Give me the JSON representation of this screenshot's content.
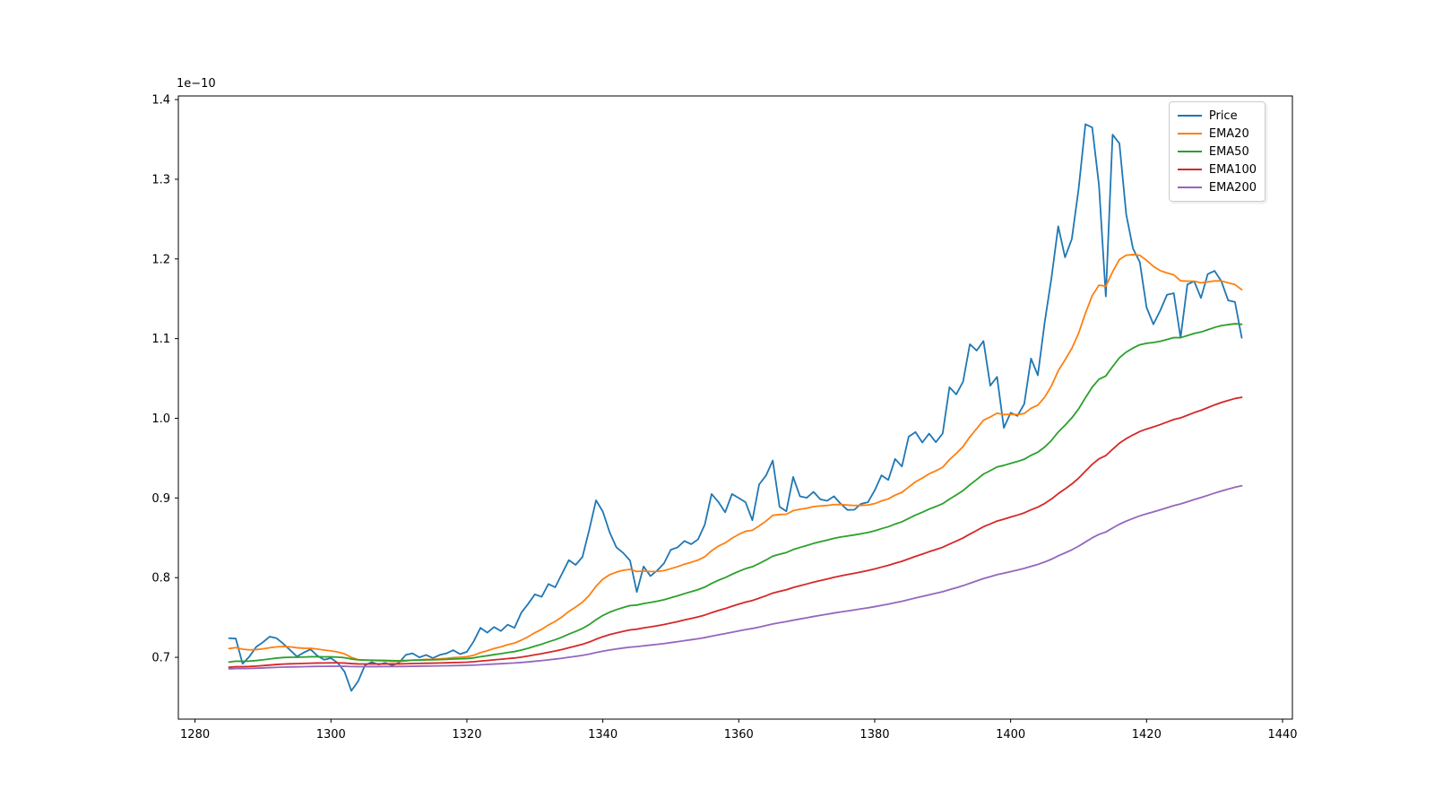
{
  "figure": {
    "background": "#ffffff",
    "plot_background": "#ffffff",
    "spine_color": "#000000",
    "grid": false
  },
  "chart_data": {
    "type": "line",
    "title": "",
    "xlabel": "",
    "ylabel": "",
    "offset_text": "1e−10",
    "y_unit_factor": "1e-10",
    "x_start": 1285,
    "x_step": 1,
    "xlim": [
      1277.55,
      1441.45
    ],
    "ylim": [
      0.62245,
      1.40455
    ],
    "x_ticks": [
      1280,
      1300,
      1320,
      1340,
      1360,
      1380,
      1400,
      1420,
      1440
    ],
    "y_ticks": [
      0.7,
      0.8,
      0.9,
      1.0,
      1.1,
      1.2,
      1.3,
      1.4
    ],
    "legend_position": "upper right",
    "series": [
      {
        "name": "Price",
        "color": "#1f77b4",
        "values": [
          0.724,
          0.7235,
          0.692,
          0.701,
          0.713,
          0.719,
          0.726,
          0.724,
          0.717,
          0.709,
          0.701,
          0.706,
          0.71,
          0.702,
          0.697,
          0.699,
          0.693,
          0.682,
          0.658,
          0.67,
          0.69,
          0.694,
          0.691,
          0.693,
          0.69,
          0.693,
          0.703,
          0.705,
          0.7,
          0.703,
          0.699,
          0.703,
          0.705,
          0.709,
          0.704,
          0.707,
          0.72,
          0.737,
          0.731,
          0.738,
          0.733,
          0.741,
          0.737,
          0.756,
          0.767,
          0.779,
          0.776,
          0.792,
          0.788,
          0.805,
          0.822,
          0.816,
          0.826,
          0.86,
          0.897,
          0.883,
          0.857,
          0.838,
          0.831,
          0.8215,
          0.782,
          0.814,
          0.802,
          0.809,
          0.818,
          0.835,
          0.838,
          0.846,
          0.842,
          0.848,
          0.8665,
          0.905,
          0.895,
          0.882,
          0.905,
          0.9,
          0.8946,
          0.872,
          0.917,
          0.928,
          0.947,
          0.889,
          0.8833,
          0.9264,
          0.9021,
          0.9002,
          0.9077,
          0.8983,
          0.8965,
          0.9021,
          0.8927,
          0.885,
          0.8852,
          0.8927,
          0.8946,
          0.9096,
          0.9284,
          0.9227,
          0.949,
          0.9396,
          0.977,
          0.9827,
          0.9696,
          0.9808,
          0.97,
          0.981,
          1.039,
          1.03,
          1.046,
          1.093,
          1.085,
          1.097,
          1.041,
          1.052,
          0.988,
          1.007,
          1.003,
          1.018,
          1.075,
          1.054,
          1.12,
          1.176,
          1.241,
          1.202,
          1.225,
          1.288,
          1.369,
          1.365,
          1.292,
          1.153,
          1.356,
          1.345,
          1.256,
          1.213,
          1.196,
          1.139,
          1.118,
          1.135,
          1.155,
          1.157,
          1.101,
          1.168,
          1.172,
          1.151,
          1.181,
          1.185,
          1.172,
          1.148,
          1.146,
          1.101
        ]
      },
      {
        "name": "EMA20",
        "color": "#ff7f0e",
        "type": "ema",
        "period": 20,
        "seed": 0.711,
        "source": "Price"
      },
      {
        "name": "EMA50",
        "color": "#2ca02c",
        "type": "ema",
        "period": 50,
        "seed": 0.694,
        "source": "Price"
      },
      {
        "name": "EMA100",
        "color": "#d62728",
        "type": "ema",
        "period": 100,
        "seed": 0.6875,
        "source": "Price"
      },
      {
        "name": "EMA200",
        "color": "#9467bd",
        "type": "ema",
        "period": 200,
        "seed": 0.6855,
        "source": "Price"
      }
    ]
  }
}
